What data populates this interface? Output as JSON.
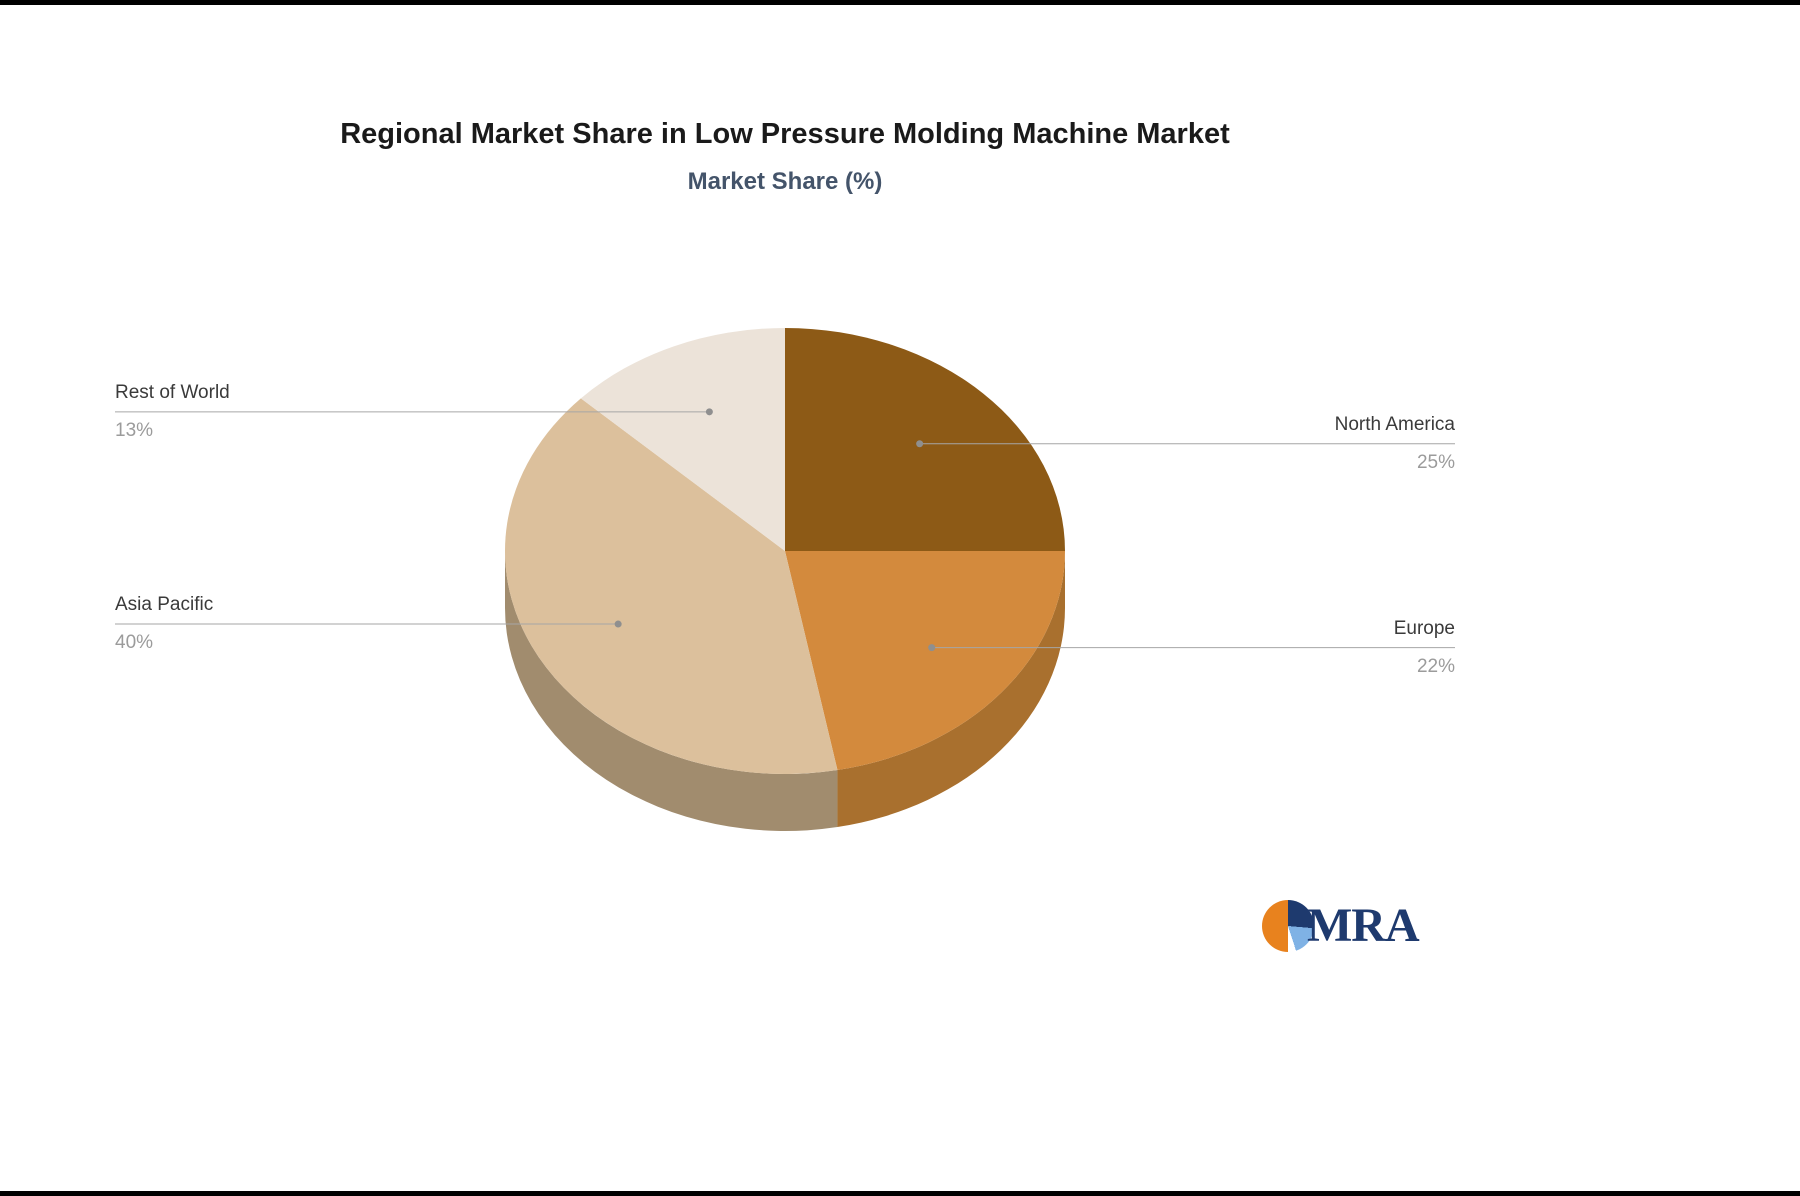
{
  "page": {
    "background": "#ffffff",
    "edge_border_color": "#000000"
  },
  "chart_data": {
    "type": "pie",
    "effect": "3d",
    "title": "Regional Market Share in Low Pressure Molding Machine Market",
    "subtitle": "Market Share (%)",
    "start_angle_deg": 0,
    "direction": "clockwise",
    "legend": "none",
    "slices": [
      {
        "label": "North America",
        "value": 25,
        "display": "25%",
        "color": "#8D5A16",
        "side_color": "#6B440F",
        "label_side": "right"
      },
      {
        "label": "Europe",
        "value": 22,
        "display": "22%",
        "color": "#D38A3D",
        "side_color": "#A9702E",
        "label_side": "right"
      },
      {
        "label": "Asia Pacific",
        "value": 40,
        "display": "40%",
        "color": "#DCC09C",
        "side_color": "#A18C6E",
        "label_side": "left"
      },
      {
        "label": "Rest of World",
        "value": 13,
        "display": "13%",
        "color": "#ECE3D9",
        "side_color": "#BFB3A0",
        "label_side": "left"
      }
    ],
    "style": {
      "title_color": "#1a1a1a",
      "subtitle_color": "#44546a",
      "label_color": "#3a3a3a",
      "value_color": "#9b9b9b",
      "leader_line_color": "#a6a6a6",
      "leader_dot_color": "#8f8f8f"
    }
  },
  "logo": {
    "text": "MRA",
    "color": "#1E3A6E",
    "icon_colors": [
      "#E8821E",
      "#1E3A6E",
      "#7FB2E5",
      "#FFFFFF"
    ]
  }
}
